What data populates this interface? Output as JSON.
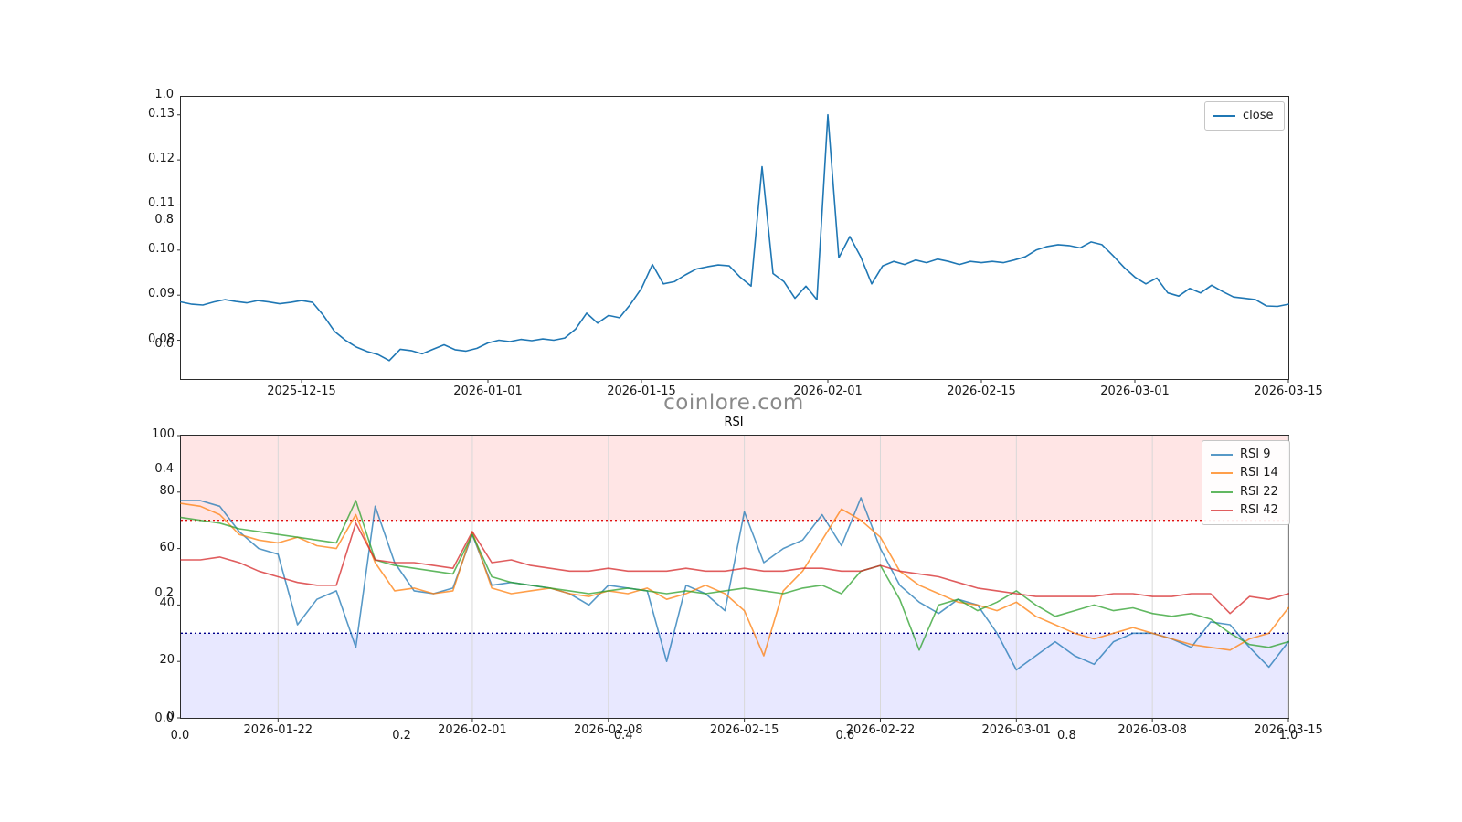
{
  "watermark": "coinlore.com",
  "rsi_title": "RSI",
  "colors": {
    "grid": "#d8d8d8",
    "spine": "#2b2b2b",
    "close_line": "#1f77b4",
    "rsi9": "rgba(31,119,180,0.75)",
    "rsi14": "rgba(255,127,14,0.75)",
    "rsi22": "rgba(44,160,44,0.75)",
    "rsi42": "rgba(214,39,40,0.75)",
    "overbought_band": "rgba(255,0,0,0.10)",
    "oversold_band": "rgba(80,80,255,0.13)",
    "overbought_line": "#e01010",
    "oversold_line": "#00008b"
  },
  "chart_data": [
    {
      "id": "price",
      "type": "line",
      "title": "",
      "legend_position": "upper right",
      "grid_x": false,
      "xlim": [
        0,
        101
      ],
      "ylim": [
        0.0714,
        0.134
      ],
      "x_start_date": "2025-12-04",
      "x_ticks": [
        {
          "v": 11,
          "label": "2025-12-15"
        },
        {
          "v": 28,
          "label": "2026-01-01"
        },
        {
          "v": 42,
          "label": "2026-01-15"
        },
        {
          "v": 59,
          "label": "2026-02-01"
        },
        {
          "v": 73,
          "label": "2026-02-15"
        },
        {
          "v": 87,
          "label": "2026-03-01"
        },
        {
          "v": 101,
          "label": "2026-03-15"
        }
      ],
      "y_ticks": [
        {
          "v": 0.13,
          "label": "0.13"
        },
        {
          "v": 0.12,
          "label": "0.12"
        },
        {
          "v": 0.11,
          "label": "0.11"
        },
        {
          "v": 0.1,
          "label": "0.10"
        },
        {
          "v": 0.09,
          "label": "0.09"
        },
        {
          "v": 0.08,
          "label": "0.08"
        }
      ],
      "series": [
        {
          "name": "close",
          "color": "#1f77b4",
          "values": [
            0.0885,
            0.088,
            0.0878,
            0.0885,
            0.089,
            0.0886,
            0.0883,
            0.0888,
            0.0885,
            0.0881,
            0.0884,
            0.0888,
            0.0884,
            0.0855,
            0.082,
            0.08,
            0.0785,
            0.0775,
            0.0768,
            0.0755,
            0.078,
            0.0777,
            0.077,
            0.078,
            0.079,
            0.0779,
            0.0776,
            0.0782,
            0.0794,
            0.08,
            0.0797,
            0.0802,
            0.0799,
            0.0803,
            0.08,
            0.0805,
            0.0825,
            0.086,
            0.0838,
            0.0855,
            0.085,
            0.088,
            0.0915,
            0.0968,
            0.0925,
            0.093,
            0.0945,
            0.0958,
            0.0963,
            0.0967,
            0.0965,
            0.094,
            0.092,
            0.1185,
            0.0948,
            0.093,
            0.0893,
            0.092,
            0.089,
            0.13,
            0.0983,
            0.103,
            0.0985,
            0.0925,
            0.0965,
            0.0975,
            0.0968,
            0.0978,
            0.0972,
            0.098,
            0.0975,
            0.0968,
            0.0975,
            0.0972,
            0.0975,
            0.0972,
            0.0978,
            0.0985,
            0.1,
            0.1008,
            0.1012,
            0.101,
            0.1005,
            0.1018,
            0.1012,
            0.0988,
            0.0962,
            0.094,
            0.0925,
            0.0938,
            0.0905,
            0.0898,
            0.0915,
            0.0905,
            0.0922,
            0.0908,
            0.0896,
            0.0893,
            0.089,
            0.0876,
            0.0875,
            0.088
          ]
        }
      ]
    },
    {
      "id": "rsi",
      "type": "line",
      "title": "RSI",
      "legend_position": "upper right",
      "grid_x": true,
      "xlim": [
        0,
        57
      ],
      "ylim": [
        0,
        100
      ],
      "x_start_date": "2026-01-17",
      "bands": [
        {
          "from": 70,
          "to": 100,
          "color": "rgba(255,0,0,0.10)",
          "meaning": "overbought"
        },
        {
          "from": 0,
          "to": 30,
          "color": "rgba(80,80,255,0.13)",
          "meaning": "oversold"
        }
      ],
      "hlines": [
        {
          "v": 70,
          "color": "#e01010",
          "style": "dotted"
        },
        {
          "v": 30,
          "color": "#00008b",
          "style": "dotted"
        }
      ],
      "x_ticks": [
        {
          "v": 5,
          "label": "2026-01-22"
        },
        {
          "v": 15,
          "label": "2026-02-01"
        },
        {
          "v": 22,
          "label": "2026-02-08"
        },
        {
          "v": 29,
          "label": "2026-02-15"
        },
        {
          "v": 36,
          "label": "2026-02-22"
        },
        {
          "v": 43,
          "label": "2026-03-01"
        },
        {
          "v": 50,
          "label": "2026-03-08"
        },
        {
          "v": 57,
          "label": "2026-03-15"
        }
      ],
      "y_ticks": [
        {
          "v": 100,
          "label": "100"
        },
        {
          "v": 80,
          "label": "80"
        },
        {
          "v": 60,
          "label": "60"
        },
        {
          "v": 40,
          "label": "40"
        },
        {
          "v": 20,
          "label": "20"
        },
        {
          "v": 0,
          "label": "0"
        }
      ],
      "series": [
        {
          "name": "RSI 9",
          "color": "rgba(31,119,180,0.75)",
          "values": [
            77,
            77,
            75,
            66,
            60,
            58,
            33,
            42,
            45,
            25,
            75,
            55,
            45,
            44,
            46,
            65,
            47,
            48,
            47,
            46,
            44,
            40,
            47,
            46,
            45,
            20,
            47,
            44,
            38,
            73,
            55,
            60,
            63,
            72,
            61,
            78,
            60,
            47,
            41,
            37,
            42,
            40,
            30,
            17,
            22,
            27,
            22,
            19,
            27,
            30,
            30,
            28,
            25,
            34,
            33,
            25,
            18,
            27
          ]
        },
        {
          "name": "RSI 14",
          "color": "rgba(255,127,14,0.75)",
          "values": [
            76,
            75,
            72,
            65,
            63,
            62,
            64,
            61,
            60,
            72,
            55,
            45,
            46,
            44,
            45,
            66,
            46,
            44,
            45,
            46,
            44,
            43,
            45,
            44,
            46,
            42,
            44,
            47,
            44,
            38,
            22,
            45,
            52,
            63,
            74,
            70,
            64,
            52,
            47,
            44,
            41,
            40,
            38,
            41,
            36,
            33,
            30,
            28,
            30,
            32,
            30,
            28,
            26,
            25,
            24,
            28,
            30,
            39
          ]
        },
        {
          "name": "RSI 22",
          "color": "rgba(44,160,44,0.75)",
          "values": [
            71,
            70,
            69,
            67,
            66,
            65,
            64,
            63,
            62,
            77,
            56,
            54,
            53,
            52,
            51,
            65,
            50,
            48,
            47,
            46,
            45,
            44,
            45,
            46,
            45,
            44,
            45,
            44,
            45,
            46,
            45,
            44,
            46,
            47,
            44,
            52,
            54,
            42,
            24,
            40,
            42,
            38,
            41,
            45,
            40,
            36,
            38,
            40,
            38,
            39,
            37,
            36,
            37,
            35,
            30,
            26,
            25,
            27
          ]
        },
        {
          "name": "RSI 42",
          "color": "rgba(214,39,40,0.75)",
          "values": [
            56,
            56,
            57,
            55,
            52,
            50,
            48,
            47,
            47,
            69,
            56,
            55,
            55,
            54,
            53,
            66,
            55,
            56,
            54,
            53,
            52,
            52,
            53,
            52,
            52,
            52,
            53,
            52,
            52,
            53,
            52,
            52,
            53,
            53,
            52,
            52,
            54,
            52,
            51,
            50,
            48,
            46,
            45,
            44,
            43,
            43,
            43,
            43,
            44,
            44,
            43,
            43,
            44,
            44,
            37,
            43,
            42,
            44
          ]
        }
      ]
    }
  ],
  "twin_axis": {
    "x_ticks": [
      {
        "v": 0.0,
        "label": "0.0"
      },
      {
        "v": 0.2,
        "label": "0.2"
      },
      {
        "v": 0.4,
        "label": "0.4"
      },
      {
        "v": 0.6,
        "label": "0.6"
      },
      {
        "v": 0.8,
        "label": "0.8"
      },
      {
        "v": 1.0,
        "label": "1.0"
      }
    ],
    "y_ticks": [
      {
        "v": 1.0,
        "label": "1.0"
      },
      {
        "v": 0.8,
        "label": "0.8"
      },
      {
        "v": 0.6,
        "label": "0.6"
      },
      {
        "v": 0.4,
        "label": "0.4"
      },
      {
        "v": 0.2,
        "label": "0.2"
      },
      {
        "v": 0.0,
        "label": "0.0"
      }
    ]
  }
}
